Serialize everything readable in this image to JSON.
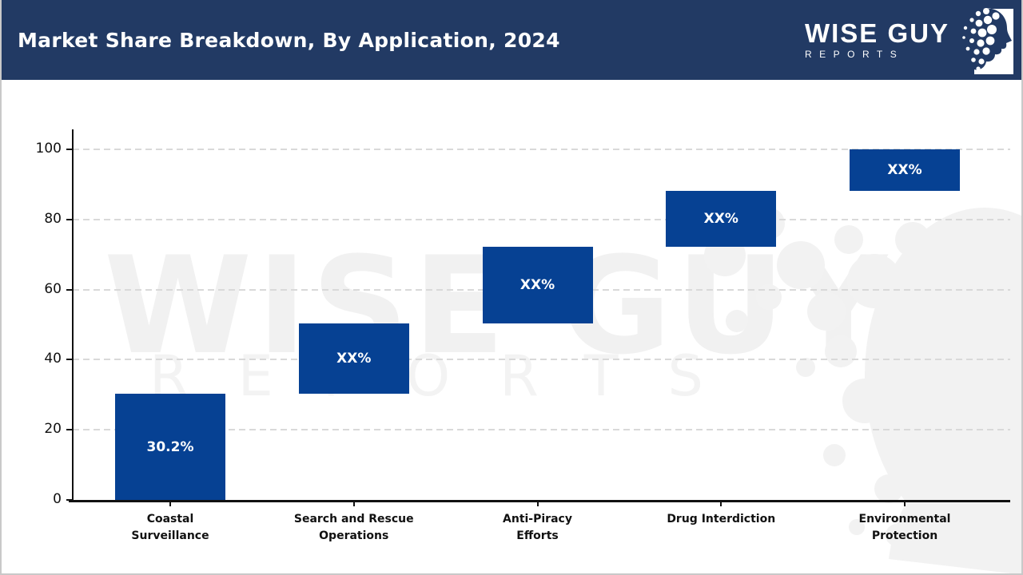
{
  "header": {
    "title": "Market Share Breakdown, By Application, 2024",
    "logo": {
      "line1": "WISE GUY",
      "line2": "REPORTS"
    }
  },
  "watermark": {
    "line1": "WISE GUY",
    "line2": "REPORTS"
  },
  "chart_data": {
    "type": "bar",
    "subtype": "waterfall-breakdown",
    "title": "Market Share Breakdown, By Application, 2024",
    "unit": "%",
    "categories": [
      "Coastal Surveillance",
      "Search and Rescue Operations",
      "Anti-Piracy Efforts",
      "Drug Interdiction",
      "Environmental Protection"
    ],
    "categories_display": [
      "Coastal\nSurveillance",
      "Search and Rescue\nOperations",
      "Anti-Piracy\nEfforts",
      "Drug Interdiction",
      "Environmental\nProtection"
    ],
    "segments": [
      {
        "category": "Coastal Surveillance",
        "start": 0,
        "end": 30.2,
        "label": "30.2%"
      },
      {
        "category": "Search and Rescue Operations",
        "start": 30.2,
        "end": 50.4,
        "label": "XX%"
      },
      {
        "category": "Anti-Piracy Efforts",
        "start": 50.4,
        "end": 72.1,
        "label": "XX%"
      },
      {
        "category": "Drug Interdiction",
        "start": 72.1,
        "end": 88.2,
        "label": "XX%"
      },
      {
        "category": "Environmental Protection",
        "start": 88.2,
        "end": 100,
        "label": "XX%"
      }
    ],
    "yticks": [
      0,
      20,
      40,
      60,
      80,
      100
    ],
    "ylim": [
      0,
      105.7
    ],
    "grid": "horizontal-dashed",
    "legend": "none",
    "bar_color": "#064193",
    "bar_label_color": "#ffffff",
    "axis_color": "#111111",
    "gridline_color": "#d9d9d9",
    "header_bg_color": "#223a64"
  }
}
